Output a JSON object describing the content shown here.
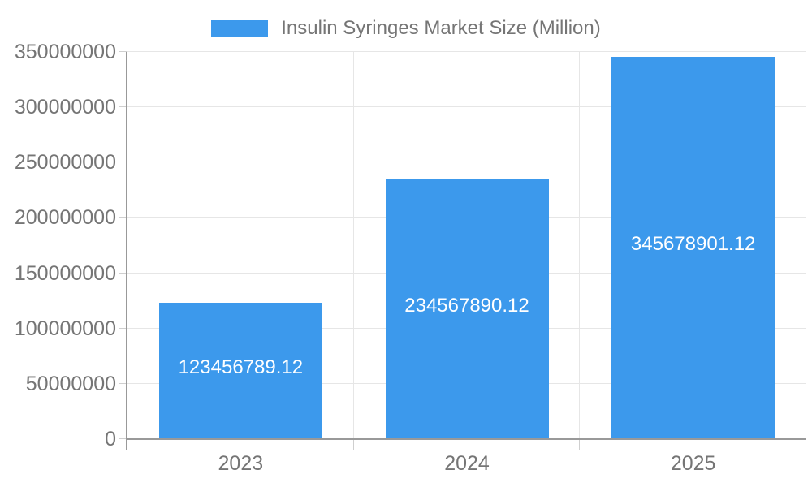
{
  "chart_data": {
    "type": "bar",
    "title": "Insulin Syringes Market Size (Million)",
    "categories": [
      "2023",
      "2024",
      "2025"
    ],
    "values": [
      123456789.12,
      234567890.12,
      345678901.12
    ],
    "bar_labels": [
      "123456789.12",
      "234567890.12",
      "345678901.12"
    ],
    "y_tick_values": [
      0,
      50000000,
      100000000,
      150000000,
      200000000,
      250000000,
      300000000,
      350000000
    ],
    "y_tick_labels": [
      "0",
      "50000000",
      "100000000",
      "150000000",
      "200000000",
      "250000000",
      "300000000",
      "350000000"
    ],
    "ylim": [
      0,
      350000000
    ],
    "xlabel": "",
    "ylabel": "",
    "grid": true,
    "legend_position": "top-center",
    "colors": {
      "bar": "#3C99EC",
      "grid": "#e6e6e6",
      "tick": "#cfcfcf",
      "axis": "#999999",
      "text": "#757575",
      "bar_label": "#ffffff",
      "background": "#ffffff"
    }
  }
}
